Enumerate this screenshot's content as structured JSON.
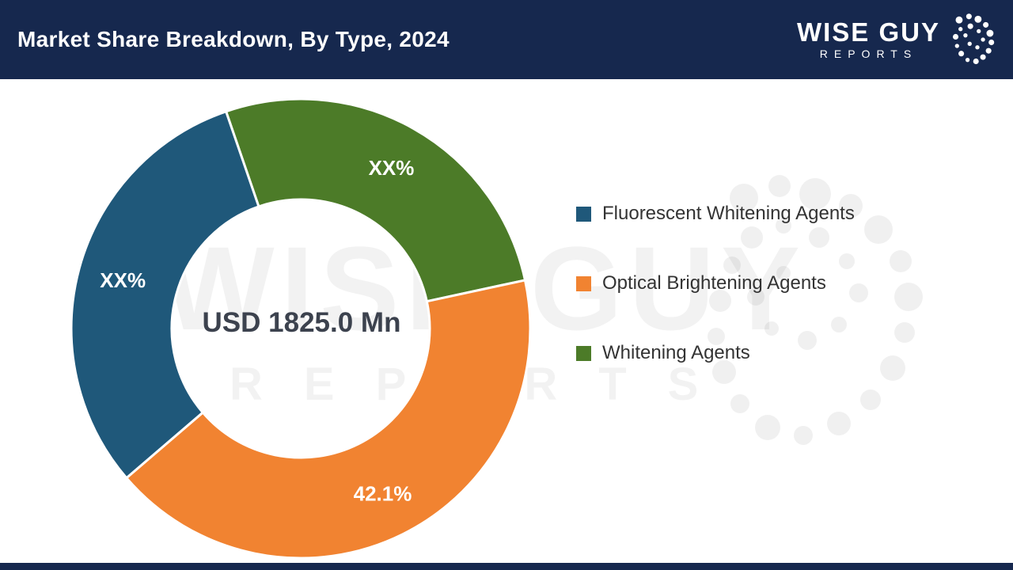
{
  "header": {
    "title": "Market Share Breakdown, By Type, 2024",
    "logo": {
      "wordmark": "WISE GUY",
      "subtitle": "REPORTS"
    }
  },
  "watermark": {
    "wordmark": "WISE GUY",
    "subtitle": "REPORTS"
  },
  "chart_data": {
    "type": "pie",
    "donut": true,
    "title": "Market Share Breakdown, By Type, 2024",
    "center_label": "USD 1825.0 Mn",
    "start_angle_deg": 109,
    "legend_position": "right",
    "segments": [
      {
        "name": "Whitening Agents",
        "value": 26.9,
        "display_label": "XX%",
        "color": "#4C7B28"
      },
      {
        "name": "Optical Brightening Agents",
        "value": 42.1,
        "display_label": "42.1%",
        "color": "#F18331"
      },
      {
        "name": "Fluorescent Whitening Agents",
        "value": 31.0,
        "display_label": "XX%",
        "color": "#1F587A"
      }
    ],
    "legend": [
      {
        "label": "Fluorescent Whitening Agents",
        "color": "#1F587A"
      },
      {
        "label": "Optical Brightening Agents",
        "color": "#F18331"
      },
      {
        "label": "Whitening Agents",
        "color": "#4C7B28"
      }
    ]
  },
  "colors": {
    "header_navy": "#16284E",
    "center_text": "#3C424E",
    "legend_text": "#333333"
  }
}
